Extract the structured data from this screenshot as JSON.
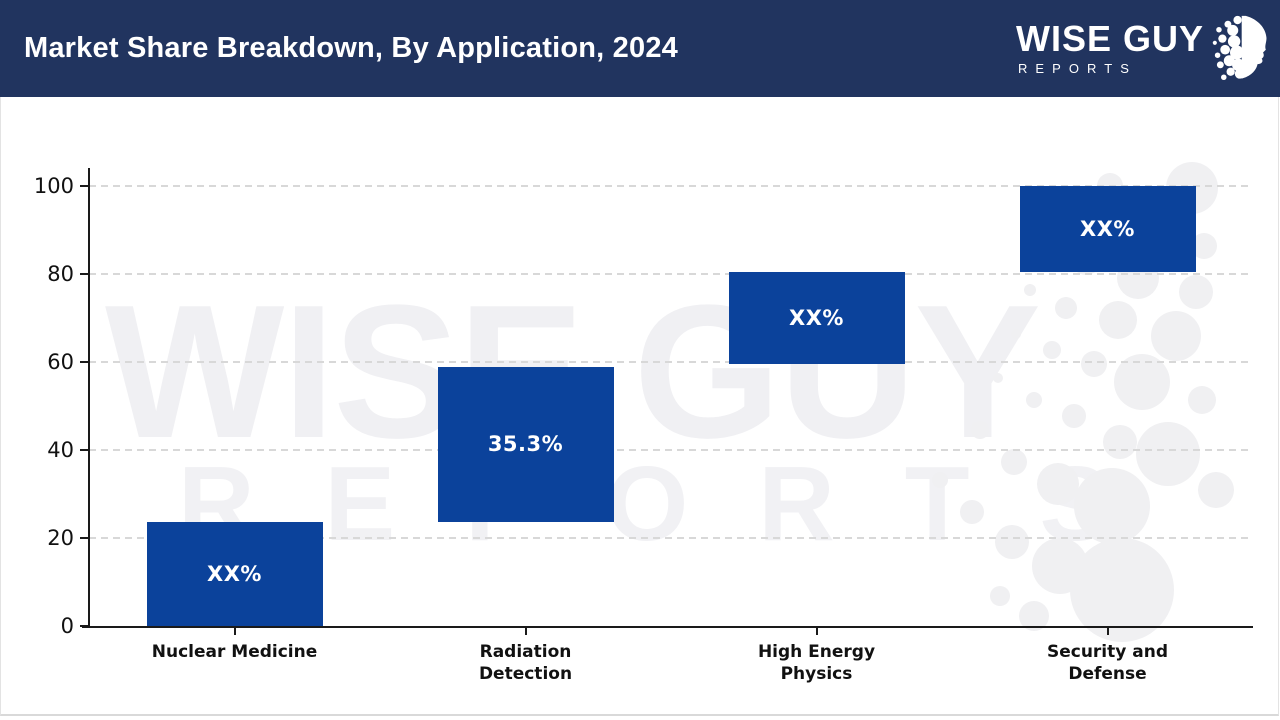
{
  "header": {
    "title": "Market Share Breakdown, By Application, 2024",
    "brand": {
      "name": "WISE GUY",
      "tagline": "REPORTS"
    }
  },
  "watermark": {
    "brand": "WISE GUY",
    "tagline": "REPORTS"
  },
  "colors": {
    "header_bg": "#21345f",
    "bar": "#0b429b",
    "bar_label": "#ffffff",
    "grid": "#d8d8d8",
    "axis": "#1a1a1a",
    "watermark": "#f0f0f3"
  },
  "chart_data": {
    "type": "bar",
    "subtype": "waterfall",
    "title": "Market Share Breakdown, By Application, 2024",
    "xlabel": "",
    "ylabel": "",
    "ylim": [
      0,
      100
    ],
    "yticks": [
      0,
      20,
      40,
      60,
      80,
      100
    ],
    "grid": true,
    "legend": false,
    "bar_color": "#0b429b",
    "categories": [
      "Nuclear Medicine",
      "Radiation Detection",
      "High Energy Physics",
      "Security and Defense"
    ],
    "category_label_lines": [
      [
        "Nuclear Medicine"
      ],
      [
        "Radiation",
        "Detection"
      ],
      [
        "High Energy",
        "Physics"
      ],
      [
        "Security and",
        "Defense"
      ]
    ],
    "segments": [
      {
        "category": "Nuclear Medicine",
        "start": 0,
        "end": 23.6,
        "label": "XX%"
      },
      {
        "category": "Radiation Detection",
        "start": 23.6,
        "end": 58.9,
        "label": "35.3%"
      },
      {
        "category": "High Energy Physics",
        "start": 59.6,
        "end": 80.4,
        "label": "XX%"
      },
      {
        "category": "Security and Defense",
        "start": 80.5,
        "end": 100,
        "label": "XX%"
      }
    ]
  }
}
